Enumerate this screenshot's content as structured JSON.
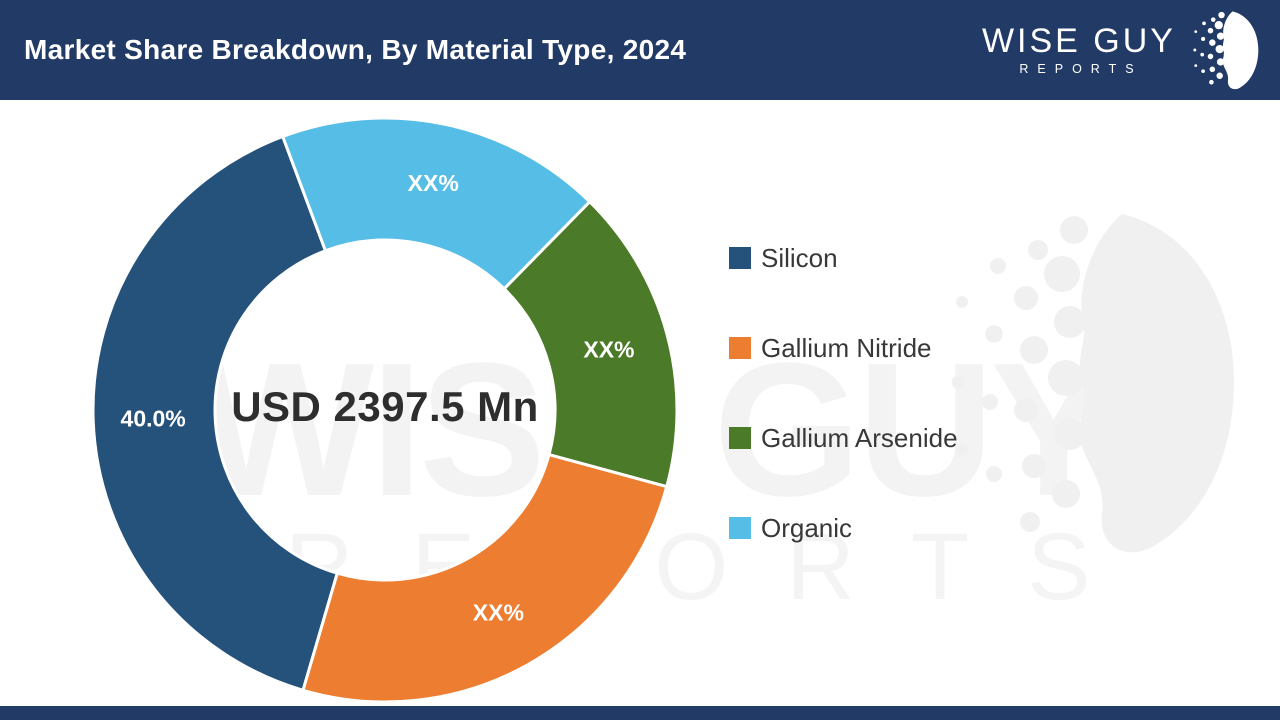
{
  "header": {
    "title": "Market Share Breakdown, By Material Type, 2024",
    "logo": {
      "line1": "WISE GUY",
      "line2": "REPORTS"
    }
  },
  "watermark": {
    "line1": "WISE GUY",
    "line2": "REPORTS"
  },
  "chart_data": {
    "type": "pie",
    "subtype": "donut",
    "title": "Market Share Breakdown, By Material Type, 2024",
    "center_label": "USD 2397.5 Mn",
    "legend_position": "right",
    "segments": [
      {
        "name": "Silicon",
        "label": "40.0%",
        "value_pct_est": 40.0,
        "color": "#25527B",
        "start_deg": 196.3,
        "end_deg": 339.5
      },
      {
        "name": "Gallium Nitride",
        "label": "XX%",
        "value_pct_est": 25.3,
        "color": "#EC7D31",
        "start_deg": 105.2,
        "end_deg": 196.3
      },
      {
        "name": "Gallium Arsenide",
        "label": "XX%",
        "value_pct_est": 16.9,
        "color": "#4B7A28",
        "start_deg": 44.5,
        "end_deg": 105.2
      },
      {
        "name": "Organic",
        "label": "XX%",
        "value_pct_est": 18.1,
        "color": "#55BDE6",
        "start_deg": -20.5,
        "end_deg": 44.5
      }
    ]
  },
  "colors": {
    "header_bg": "#223A66",
    "footer_bg": "#223A66",
    "watermark": "#f3f3f3",
    "center_text": "#2e2e2e",
    "legend_text": "#383838"
  }
}
